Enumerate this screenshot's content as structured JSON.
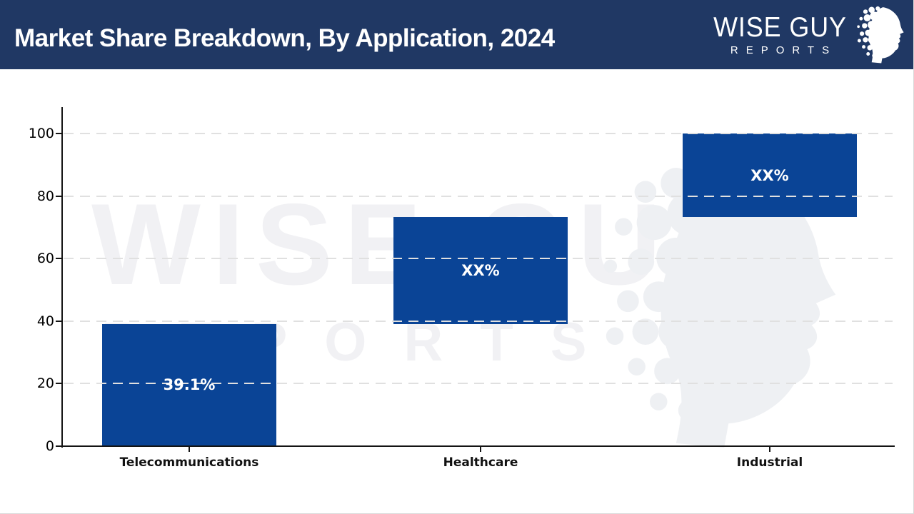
{
  "header": {
    "title": "Market Share Breakdown, By Application, 2024",
    "bg_color": "#203864",
    "logo": {
      "wordmark": "WISE GUY",
      "subtext": "REPORTS",
      "face_icon": "dotted-head-profile-icon"
    }
  },
  "watermark": {
    "wordmark": "WISE GUY",
    "subtext": "REPORTS",
    "face_icon": "dotted-head-profile-icon"
  },
  "chart_data": {
    "type": "bar",
    "subtype": "floating-waterfall-percentage",
    "title": "Market Share Breakdown, By Application, 2024",
    "categories": [
      "Telecommunications",
      "Healthcare",
      "Industrial"
    ],
    "segments": [
      {
        "category": "Telecommunications",
        "start": 0,
        "end": 39.1,
        "label": "39.1%"
      },
      {
        "category": "Healthcare",
        "start": 39.1,
        "end": 73.2,
        "label": "XX%"
      },
      {
        "category": "Industrial",
        "start": 73.2,
        "end": 100,
        "label": "XX%"
      }
    ],
    "xlabel": "",
    "ylabel": "",
    "ylim": [
      0,
      100
    ],
    "yticks": [
      0,
      20,
      40,
      60,
      80,
      100
    ],
    "grid": "horizontal-dashed-above-bars",
    "legend": "none",
    "bar_color": "#0a4496",
    "bar_label_color": "#ffffff",
    "grid_color": "#e0e0e0",
    "axis_color": "#141414",
    "tick_label_color": "#000000"
  }
}
